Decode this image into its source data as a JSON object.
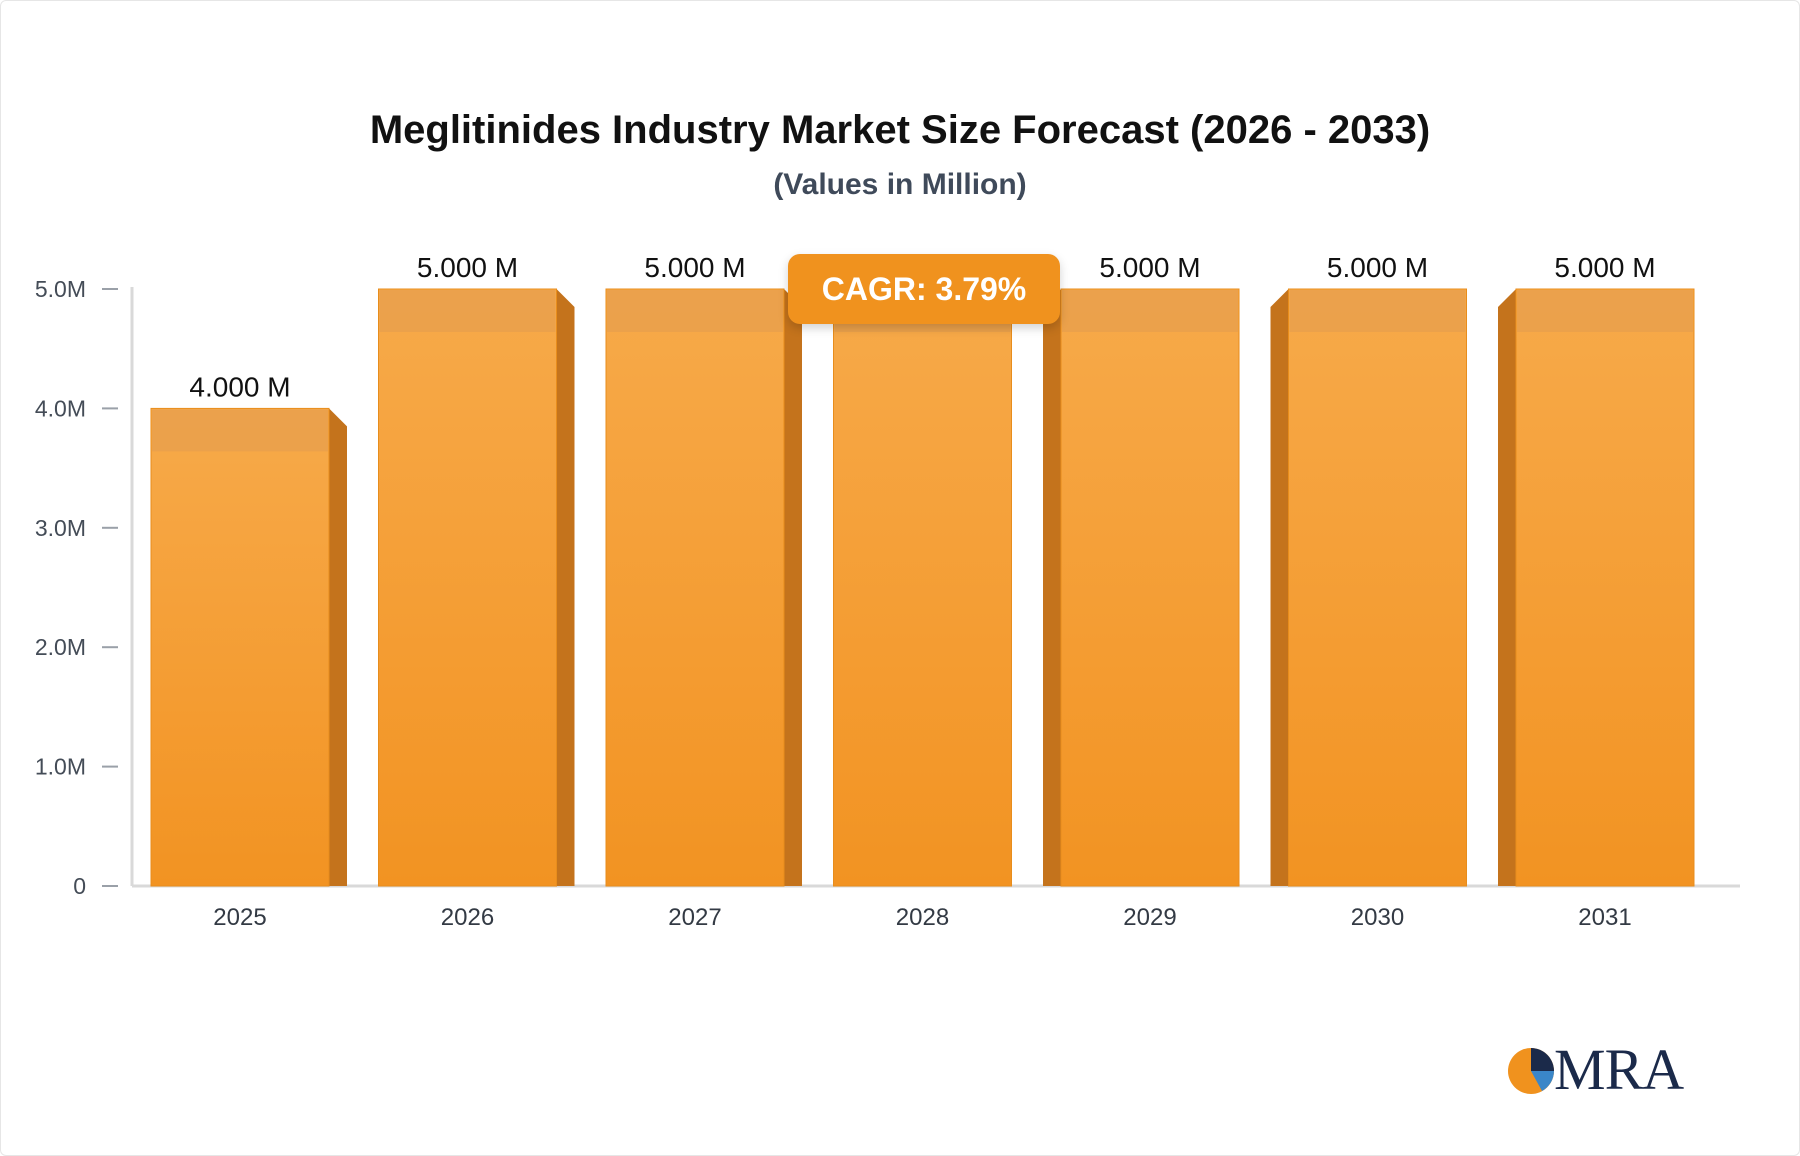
{
  "chart_data": {
    "type": "bar",
    "title": "Meglitinides Industry Market Size Forecast (2026 - 2033)",
    "subtitle": "(Values in Million)",
    "categories": [
      "2025",
      "2026",
      "2027",
      "2028",
      "2029",
      "2030",
      "2031"
    ],
    "values": [
      4.0,
      5.0,
      5.0,
      5.0,
      5.0,
      5.0,
      5.0
    ],
    "value_labels": [
      "4.000 M",
      "5.000 M",
      "5.000 M",
      "",
      "5.000 M",
      "5.000 M",
      "5.000 M"
    ],
    "ylim": [
      0,
      5.0
    ],
    "yticks": [
      0,
      1.0,
      2.0,
      3.0,
      4.0,
      5.0
    ],
    "ytick_labels": [
      "0",
      "1.0M",
      "2.0M",
      "3.0M",
      "4.0M",
      "5.0M"
    ],
    "xlabel": "",
    "ylabel": "",
    "grid": false,
    "annotation": "CAGR: 3.79%",
    "colors": {
      "bar": "#f5a03c",
      "bar_side": "#c4731c",
      "bar_top": "#e9a04c"
    }
  },
  "logo": {
    "text": "MRA"
  }
}
